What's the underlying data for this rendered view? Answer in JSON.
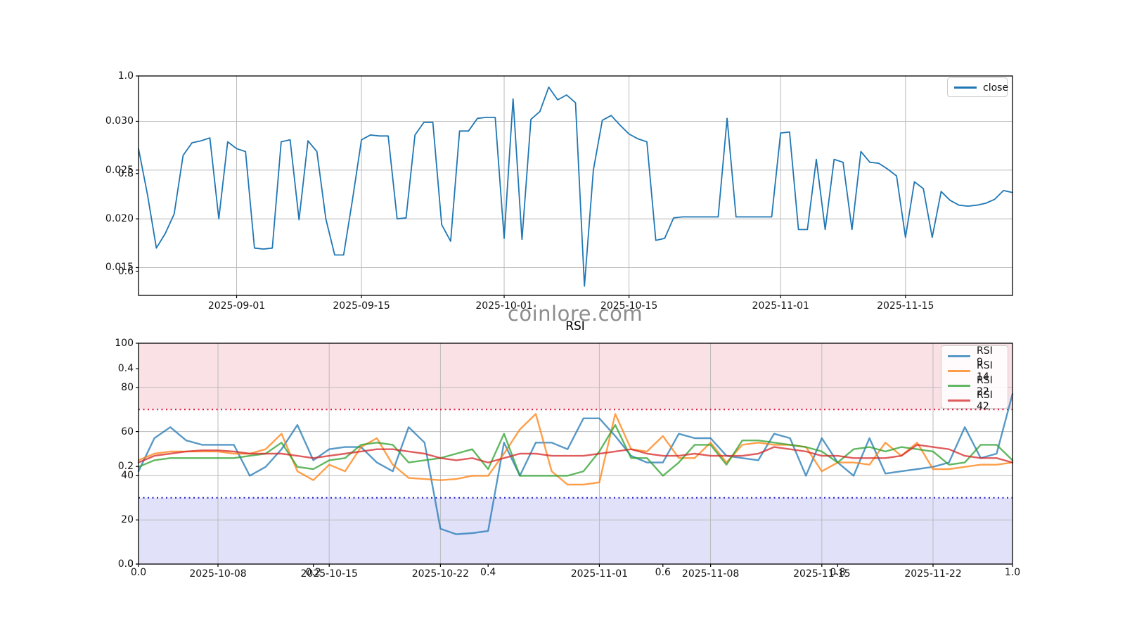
{
  "watermark": "coinlore.com",
  "colors": {
    "grid": "#bbbbbb",
    "spine": "#000000",
    "overbought_band": "rgba(220,20,60,0.13)",
    "oversold_band": "rgba(25,25,220,0.13)",
    "overbought_line": "#e01030",
    "oversold_line": "#1a1acd"
  },
  "overlay_axis": {
    "x_tick_labels": [
      "0.0",
      "0.2",
      "0.4",
      "0.6",
      "0.8",
      "1.0"
    ],
    "y_tick_labels": [
      "0.0",
      "0.2",
      "0.4",
      "0.6",
      "0.8",
      "1.0"
    ]
  },
  "chart_data": [
    {
      "type": "line",
      "name": "price",
      "title": "",
      "grid": true,
      "legend_position": "upper right",
      "ylim": [
        0.01215,
        0.03465
      ],
      "y_ticks": [
        "0.015",
        "0.020",
        "0.025",
        "0.030"
      ],
      "y_tick_values": [
        0.015,
        0.02,
        0.025,
        0.03
      ],
      "x_tick_labels": [
        "2025-09-01",
        "2025-09-15",
        "2025-10-01",
        "2025-10-15",
        "2025-11-01",
        "2025-11-15"
      ],
      "x_tick_indices": [
        11,
        25,
        41,
        55,
        72,
        86
      ],
      "series": [
        {
          "name": "close",
          "color": "#1f77b4",
          "opacity": 1,
          "width": 1.8,
          "values": [
            0.0272,
            0.0225,
            0.017,
            0.0185,
            0.0205,
            0.0265,
            0.0278,
            0.028,
            0.0283,
            0.02,
            0.0279,
            0.0272,
            0.0269,
            0.017,
            0.0169,
            0.017,
            0.0279,
            0.0281,
            0.0199,
            0.028,
            0.0269,
            0.02,
            0.0163,
            0.0163,
            0.022,
            0.0281,
            0.0286,
            0.0285,
            0.0285,
            0.02,
            0.0201,
            0.0286,
            0.0299,
            0.0299,
            0.0194,
            0.0177,
            0.029,
            0.029,
            0.0303,
            0.0304,
            0.0304,
            0.018,
            0.0323,
            0.0179,
            0.0302,
            0.031,
            0.0335,
            0.0322,
            0.0327,
            0.0319,
            0.0131,
            0.025,
            0.0301,
            0.0306,
            0.0296,
            0.0287,
            0.0282,
            0.0279,
            0.0178,
            0.018,
            0.0201,
            0.0202,
            0.0202,
            0.0202,
            0.0202,
            0.0202,
            0.0303,
            0.0202,
            0.0202,
            0.0202,
            0.0202,
            0.0202,
            0.0288,
            0.0289,
            0.0189,
            0.0189,
            0.0261,
            0.0189,
            0.0261,
            0.0258,
            0.0189,
            0.0269,
            0.0258,
            0.0257,
            0.0251,
            0.0244,
            0.0181,
            0.0238,
            0.0231,
            0.0181,
            0.0228,
            0.0219,
            0.0214,
            0.0213,
            0.0214,
            0.0216,
            0.022,
            0.0229,
            0.0227
          ]
        }
      ]
    },
    {
      "type": "line",
      "name": "rsi",
      "title": "RSI",
      "grid": true,
      "legend_position": "upper right",
      "ylim": [
        0,
        100
      ],
      "y_ticks": [
        "0",
        "20",
        "40",
        "60",
        "80",
        "100"
      ],
      "y_tick_values": [
        0,
        20,
        40,
        60,
        80,
        100
      ],
      "x_tick_labels": [
        "2025-10-08",
        "2025-10-15",
        "2025-10-22",
        "2025-11-01",
        "2025-11-08",
        "2025-11-15",
        "2025-11-22"
      ],
      "x_tick_indices": [
        5,
        12,
        19,
        29,
        36,
        43,
        50
      ],
      "bands": [
        {
          "from": 70,
          "to": 100,
          "color": "rgba(220,20,60,0.13)"
        },
        {
          "from": 0,
          "to": 30,
          "color": "rgba(25,25,220,0.13)"
        }
      ],
      "hlines": [
        {
          "y": 70,
          "color": "#e01030",
          "dash": "2 4.5",
          "width": 2
        },
        {
          "y": 30,
          "color": "#1a1acd",
          "dash": "2 4.5",
          "width": 2
        }
      ],
      "series": [
        {
          "name": "RSI 9",
          "color": "#1f77b4",
          "opacity": 0.75,
          "width": 2.4,
          "values": [
            42,
            57,
            62,
            56,
            54,
            54,
            54,
            40,
            44,
            52,
            63,
            47,
            52,
            53,
            53,
            46,
            42,
            62,
            55,
            16,
            13.5,
            14,
            15,
            55,
            40,
            55,
            55,
            52,
            66,
            66,
            58,
            49,
            46,
            46,
            59,
            57,
            57,
            49,
            48,
            47,
            59,
            57,
            40,
            57,
            46,
            40,
            57,
            41,
            42,
            43,
            44,
            46,
            62,
            48,
            50,
            77
          ]
        },
        {
          "name": "RSI 14",
          "color": "#ff7f0e",
          "opacity": 0.75,
          "width": 2.4,
          "values": [
            47,
            50,
            51,
            51,
            51,
            51,
            50,
            50,
            52,
            59,
            42,
            38,
            45,
            42,
            53,
            57,
            45,
            39,
            38.5,
            38,
            38.5,
            40,
            40,
            50,
            61,
            68,
            42,
            36,
            36,
            37,
            68,
            52,
            51,
            58,
            48,
            48,
            55,
            46,
            54,
            55,
            54,
            54,
            53,
            42,
            46,
            46,
            45,
            55,
            49,
            55,
            43,
            43,
            44,
            45,
            45,
            46
          ]
        },
        {
          "name": "RSI 22",
          "color": "#2ca02c",
          "opacity": 0.75,
          "width": 2.4,
          "values": [
            44,
            47,
            48,
            48,
            48,
            48,
            48,
            49,
            50,
            55,
            44,
            43,
            47,
            48,
            54,
            55,
            54,
            46,
            47,
            48,
            50,
            52,
            43,
            59,
            40,
            40,
            40,
            40,
            42,
            51,
            63,
            48,
            48,
            40,
            46,
            54,
            54,
            45,
            56,
            56,
            55,
            54,
            53,
            51,
            46,
            52,
            53,
            51,
            53,
            52,
            51,
            45,
            46,
            54,
            54,
            47
          ]
        },
        {
          "name": "RSI 42",
          "color": "#d62728",
          "opacity": 0.75,
          "width": 2.4,
          "values": [
            46,
            49,
            50,
            51,
            51.5,
            51.5,
            51,
            50,
            50,
            50,
            49,
            48,
            49,
            50,
            51,
            52,
            52,
            51,
            50,
            48,
            47,
            48,
            46,
            48,
            50,
            50,
            49,
            49,
            49,
            50,
            51,
            52,
            50,
            49,
            49,
            50,
            49,
            49,
            49,
            50,
            53,
            52,
            51,
            49,
            49,
            48,
            48,
            48,
            49,
            54,
            53,
            52,
            49,
            48,
            48,
            46
          ]
        }
      ]
    }
  ]
}
